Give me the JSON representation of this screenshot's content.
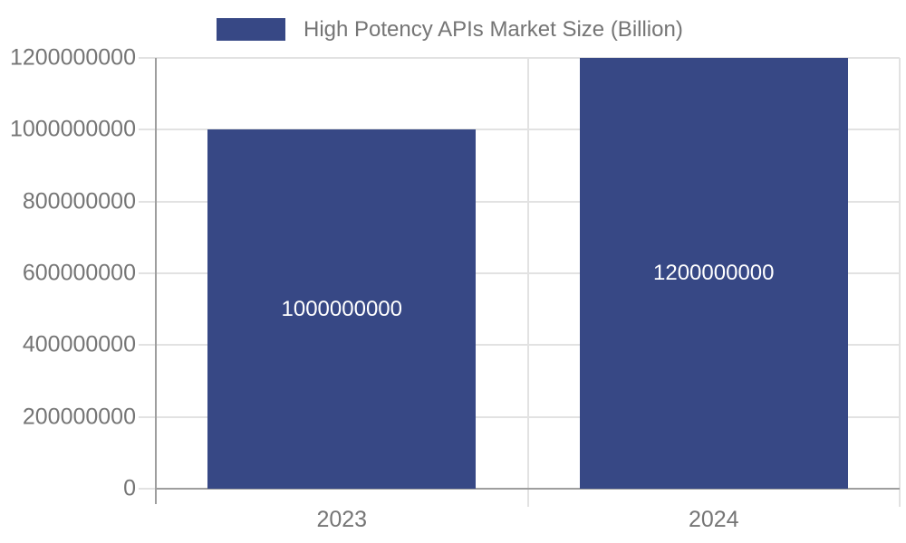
{
  "chart_data": {
    "type": "bar",
    "title": "",
    "categories": [
      "2023",
      "2024"
    ],
    "series": [
      {
        "name": "High Potency APIs Market Size (Billion)",
        "values": [
          1000000000,
          1200000000
        ]
      }
    ],
    "value_labels": [
      "1000000000",
      "1200000000"
    ],
    "y_ticks": [
      0,
      200000000,
      400000000,
      600000000,
      800000000,
      1000000000,
      1200000000
    ],
    "y_tick_labels": [
      "0",
      "200000000",
      "400000000",
      "600000000",
      "800000000",
      "1000000000",
      "1200000000"
    ],
    "ylim": [
      0,
      1200000000
    ],
    "xlabel": "",
    "ylabel": "",
    "grid": true,
    "legend_position": "top-center",
    "legend_entries": [
      "High Potency APIs Market Size (Billion)"
    ]
  },
  "colors": {
    "bar_fill": "#374885",
    "bar_value_text": "#ffffff",
    "axis_line": "#9e9e9e",
    "gridline": "#e2e2e2",
    "tick_text": "#757575",
    "legend_text": "#757575",
    "background": "#ffffff"
  }
}
